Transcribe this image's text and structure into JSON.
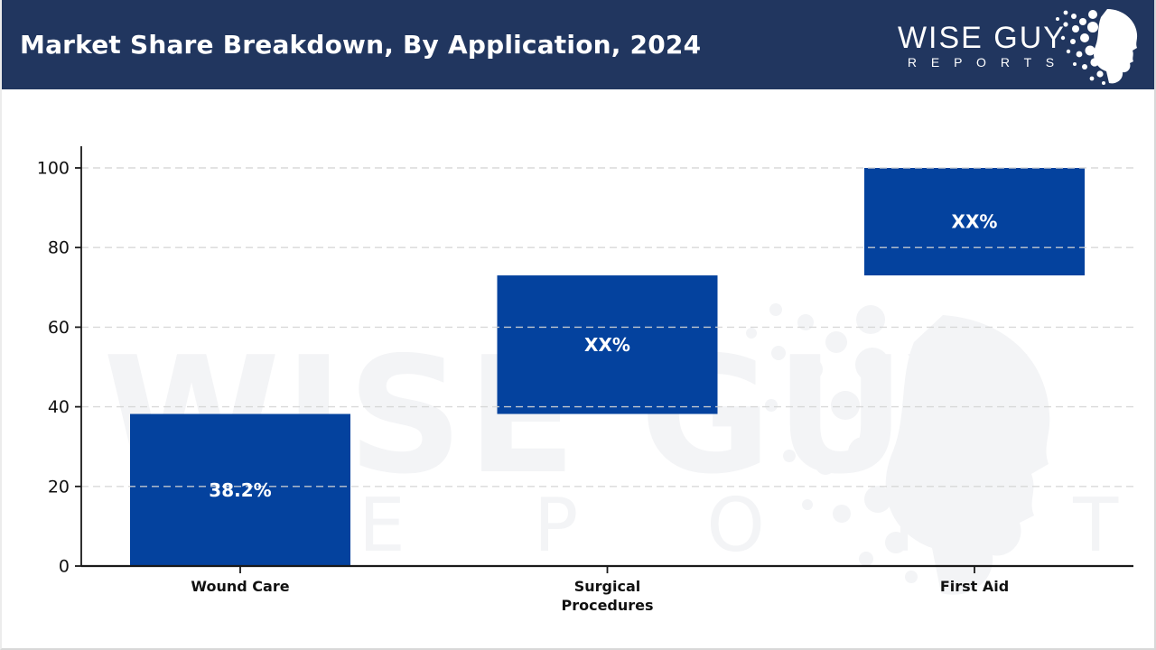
{
  "header": {
    "title": "Market Share Breakdown, By Application, 2024",
    "bg_color": "#21365f",
    "logo": {
      "line1": "WISE GUY",
      "line2": "R E P O R T S"
    }
  },
  "watermark": {
    "line1": "WISE GUY",
    "line2": "R E P O R T S"
  },
  "chart_data": {
    "type": "bar",
    "subtype": "waterfall",
    "title": "Market Share Breakdown, By Application, 2024",
    "categories": [
      "Wound Care",
      "Surgical Procedures",
      "First Aid"
    ],
    "segments": [
      {
        "category": "Wound Care",
        "start": 0,
        "end": 38.2,
        "label": "38.2%"
      },
      {
        "category": "Surgical Procedures",
        "start": 38.2,
        "end": 73,
        "label": "XX%"
      },
      {
        "category": "First Aid",
        "start": 73,
        "end": 100,
        "label": "XX%"
      }
    ],
    "yticks": [
      0,
      20,
      40,
      60,
      80,
      100
    ],
    "ylim": [
      0,
      106
    ],
    "xlabel": "",
    "ylabel": "",
    "grid": {
      "horizontal": true,
      "style": "dashed"
    },
    "legend": "none",
    "colors": {
      "bar": "#04429e",
      "bar_label": "#ffffff",
      "axis": "#1a1a1a",
      "gridline": "#d5d5d5",
      "tick_label": "#111111"
    }
  }
}
